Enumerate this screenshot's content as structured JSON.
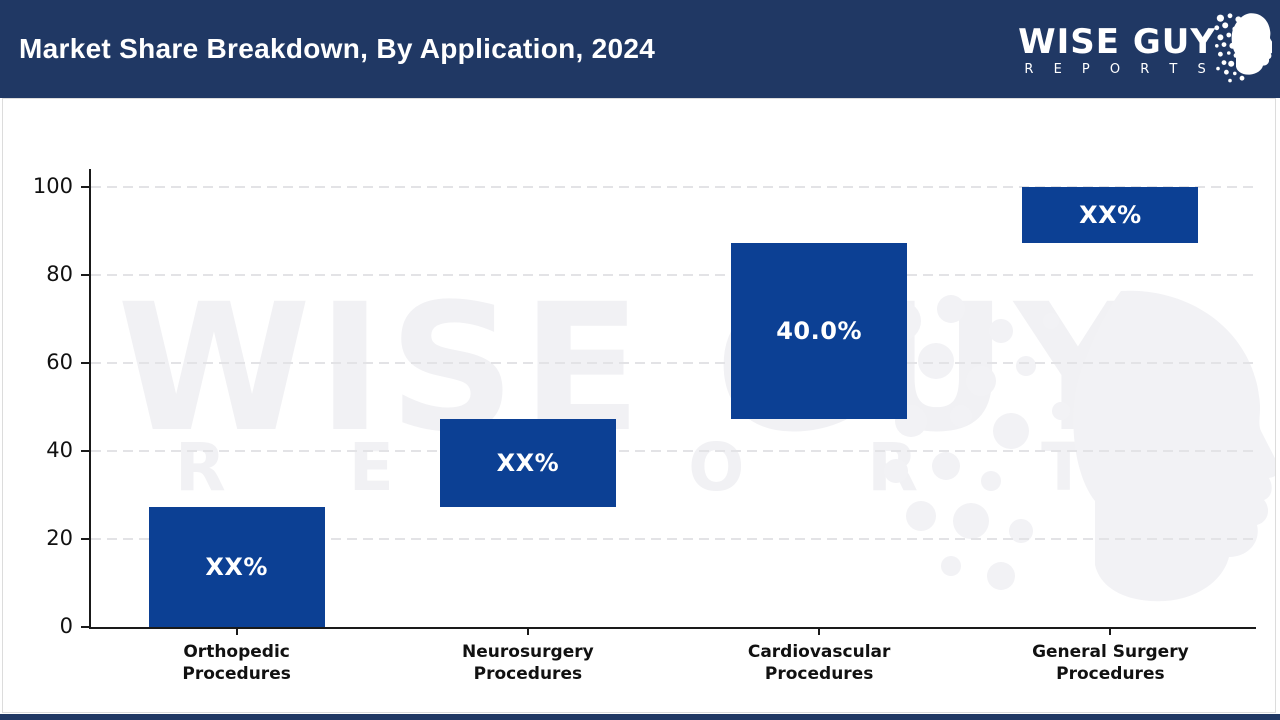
{
  "header": {
    "title": "Market Share Breakdown, By Application, 2024",
    "logo": {
      "name": "WISE GUY",
      "sub": "R E P O R T S",
      "icon": "dotted-head-profile"
    }
  },
  "watermark": {
    "name": "WISE GUY",
    "sub": "R E P O R T S",
    "icon": "dotted-head-profile"
  },
  "chart_data": {
    "type": "bar",
    "variant": "floating-waterfall",
    "title": "Market Share Breakdown, By Application, 2024",
    "categories": [
      {
        "line1": "Orthopedic",
        "line2": "Procedures"
      },
      {
        "line1": "Neurosurgery",
        "line2": "Procedures"
      },
      {
        "line1": "Cardiovascular",
        "line2": "Procedures"
      },
      {
        "line1": "General Surgery",
        "line2": "Procedures"
      }
    ],
    "bars": [
      {
        "label": "XX%",
        "base": 0,
        "top": 27.3
      },
      {
        "label": "XX%",
        "base": 27.3,
        "top": 47.3
      },
      {
        "label": "40.0%",
        "base": 47.3,
        "top": 87.3
      },
      {
        "label": "XX%",
        "base": 87.3,
        "top": 100
      }
    ],
    "ylim": [
      0,
      100
    ],
    "yticks": [
      0,
      20,
      40,
      60,
      80,
      100
    ],
    "xlabel": "",
    "ylabel": "",
    "grid": "horizontal-dashed",
    "legend": "none",
    "bar_color": "#0c4094",
    "bar_label_color": "#ffffff"
  },
  "colors": {
    "header_bg": "#203864",
    "footer_bg": "#203864",
    "bar": "#0c4094",
    "axis": "#1a1a1a",
    "grid": "#e3e3e6",
    "watermark": "#f1f1f4",
    "panel_border": "#dcdcdc"
  }
}
